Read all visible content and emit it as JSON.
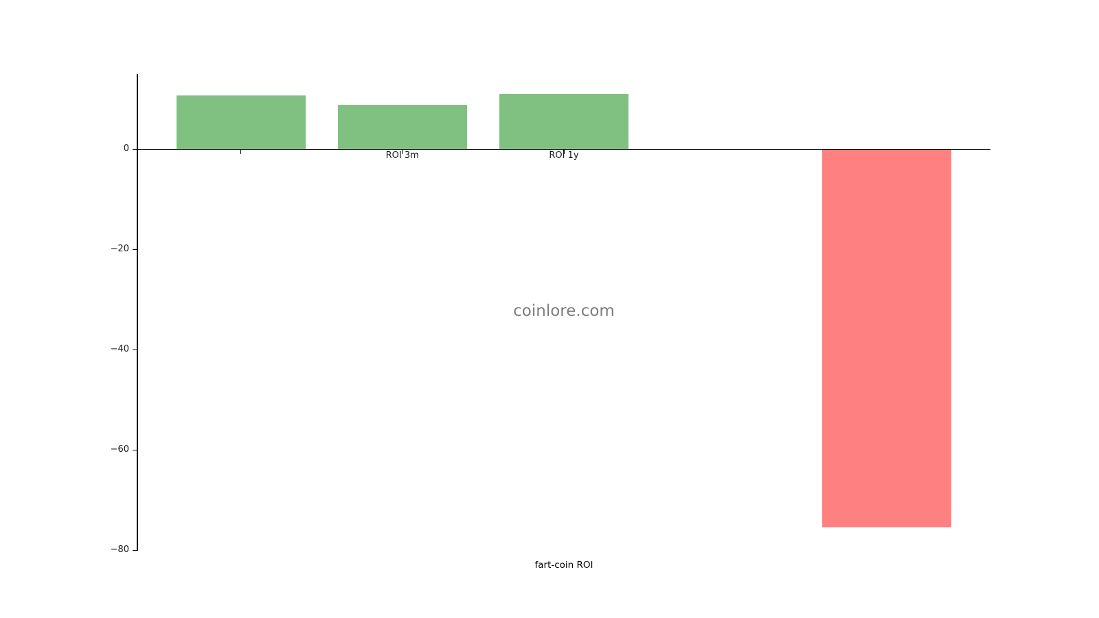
{
  "watermark": "coinlore.com",
  "chart_data": {
    "type": "bar",
    "title": "",
    "xlabel": "fart-coin ROI",
    "ylabel": "",
    "categories": [
      "",
      "ROI 3m",
      "ROI 1y",
      "",
      ""
    ],
    "values": [
      10.7,
      8.8,
      11.0,
      null,
      -75.5
    ],
    "show_x_tick": [
      true,
      true,
      true,
      false,
      false
    ],
    "yticks": [
      0,
      -20,
      -40,
      -60,
      -80
    ],
    "ylim": [
      -80,
      15
    ],
    "grid": false,
    "legend_position": "none",
    "colors": {
      "positive_bar": "#80c080",
      "negative_bar": "#ff8080",
      "axis": "#000000",
      "tick_text": "#1a1a1a",
      "watermark_text": "#7d7d7d"
    }
  }
}
